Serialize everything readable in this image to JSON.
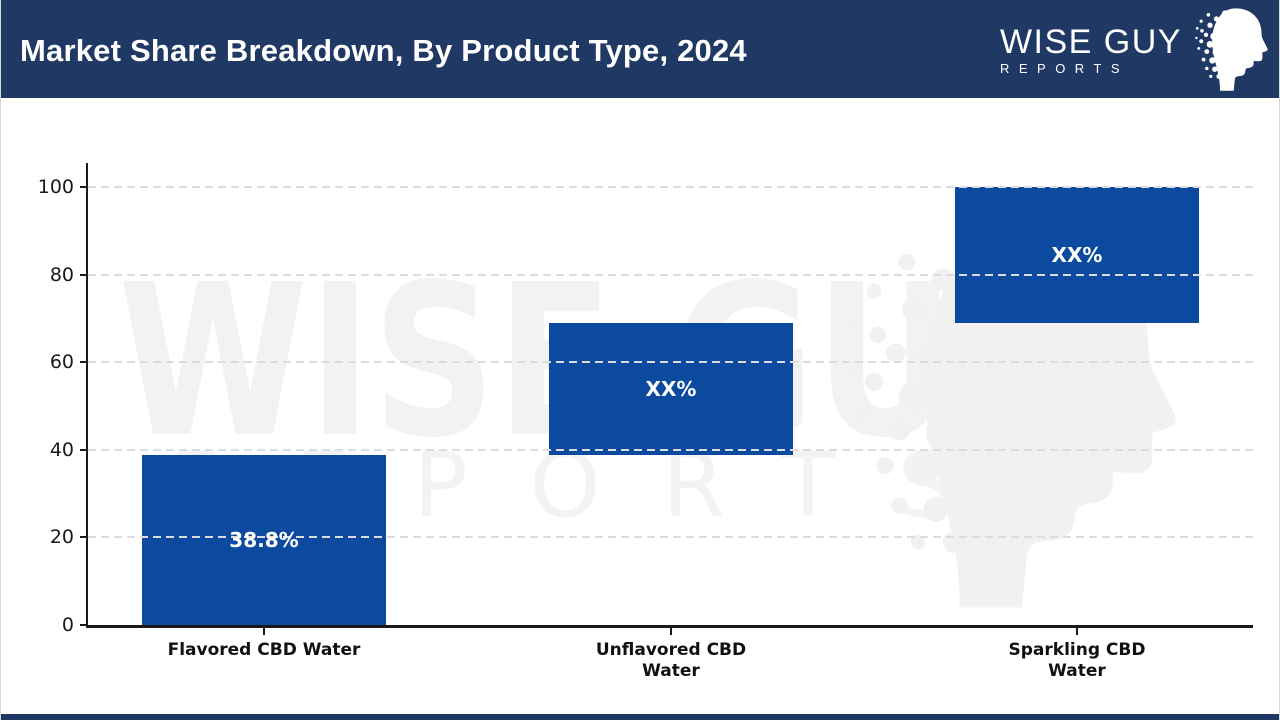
{
  "header": {
    "background": "#1f3864",
    "title": "Market Share Breakdown, By Product Type, 2024",
    "logo": {
      "line1": "WISE GUY",
      "line2": "REPORTS",
      "face_icon": "face-profile-dots"
    }
  },
  "watermark": {
    "line1": "WISE GUY",
    "line2": "REPORTS",
    "color": "#f2f2f2",
    "face_icon": "face-profile-dots"
  },
  "footer": {
    "accent_color": "#1f3864"
  },
  "chart_data": {
    "type": "bar",
    "subtype": "waterfall",
    "title": "Market Share Breakdown, By Product Type, 2024",
    "categories": [
      "Flavored CBD Water",
      "Unflavored CBD Water",
      "Sparkling CBD Water"
    ],
    "category_label_lines": [
      [
        "Flavored CBD Water"
      ],
      [
        "Unflavored CBD",
        "Water"
      ],
      [
        "Sparkling CBD",
        "Water"
      ]
    ],
    "segments": [
      {
        "category": "Flavored CBD Water",
        "start": 0,
        "end": 38.8,
        "label": "38.8%"
      },
      {
        "category": "Unflavored CBD Water",
        "start": 38.8,
        "end": 69,
        "label": "XX%"
      },
      {
        "category": "Sparkling CBD Water",
        "start": 69,
        "end": 100,
        "label": "XX%"
      }
    ],
    "ylim": [
      0,
      100
    ],
    "yticks": [
      0,
      20,
      40,
      60,
      80,
      100
    ],
    "grid": {
      "axis": "y",
      "style": "dashed",
      "color": "#dcdcdc"
    },
    "bar_color": "#0b4a9e",
    "bar_label_color": "#ffffff",
    "axis_color": "#1a1a1a",
    "tick_label_color": "#1a1a1a"
  }
}
